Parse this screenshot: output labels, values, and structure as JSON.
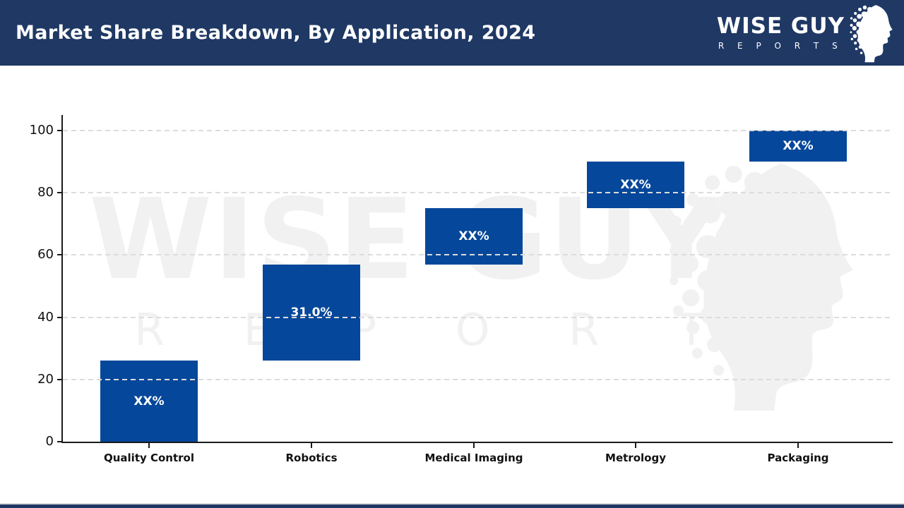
{
  "header": {
    "title": "Market Share Breakdown, By Application, 2024",
    "brand": {
      "line1": "WISE GUY",
      "line2": "R E P O R T S"
    }
  },
  "colors": {
    "header_bg": "#1f3864",
    "bar": "#05479a",
    "grid": "#dcdcdc",
    "axis": "#1a1a1a",
    "watermark": "#f1f1f1",
    "bar_label": "#ffffff"
  },
  "chart_data": {
    "type": "bar",
    "subtype": "waterfall",
    "title": "Market Share Breakdown, By Application, 2024",
    "categories": [
      "Quality Control",
      "Robotics",
      "Medical Imaging",
      "Metrology",
      "Packaging"
    ],
    "series": [
      {
        "name": "Market Share",
        "segments": [
          {
            "category": "Quality Control",
            "start": 0,
            "end": 26,
            "value": 26,
            "label": "XX%"
          },
          {
            "category": "Robotics",
            "start": 26,
            "end": 57,
            "value": 31,
            "label": "31.0%"
          },
          {
            "category": "Medical Imaging",
            "start": 57,
            "end": 75,
            "value": 18,
            "label": "XX%"
          },
          {
            "category": "Metrology",
            "start": 75,
            "end": 90,
            "value": 15,
            "label": "XX%"
          },
          {
            "category": "Packaging",
            "start": 90,
            "end": 100,
            "value": 10,
            "label": "XX%"
          }
        ]
      }
    ],
    "xlabel": "",
    "ylabel": "",
    "yticks": [
      0,
      20,
      40,
      60,
      80,
      100
    ],
    "ylim": [
      0,
      105
    ],
    "grid": "horizontal-dashed",
    "legend": "none",
    "bar_color": "#05479a"
  }
}
